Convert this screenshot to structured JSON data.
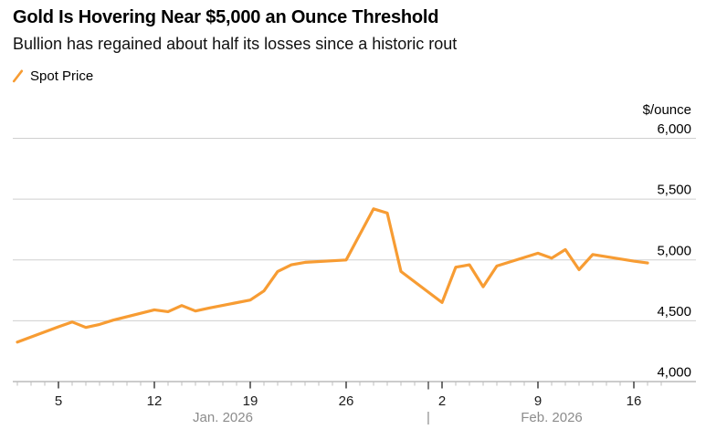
{
  "header": {
    "title": "Gold Is Hovering Near $5,000 an Ounce Threshold",
    "subtitle": "Bullion has regained about half its losses since a historic rout"
  },
  "legend": {
    "items": [
      {
        "label": "Spot Price",
        "marker": "slash-icon",
        "color": "#F79C33"
      }
    ]
  },
  "colors": {
    "accent_orange": "#F79C33",
    "gridline": "#CFCFCF",
    "axis_line": "#ADADAD",
    "major_tick": "#3F3F3F",
    "minor_tick": "#BDBDBD",
    "text_primary": "#000000",
    "text_day_labels": "#1C1C1C",
    "text_month_labels": "#8C8C8C"
  },
  "chart_data": {
    "type": "line",
    "title": "Gold Is Hovering Near $5,000 an Ounce Threshold",
    "subtitle": "Bullion has regained about half its losses since a historic rout",
    "grid": "horizontal",
    "legend_position": "top-left",
    "y_axis": {
      "unit_label": "$/ounce",
      "range": [
        4000,
        6000
      ],
      "ticks": [
        {
          "value": 6000,
          "label": "6,000"
        },
        {
          "value": 5500,
          "label": "5,500"
        },
        {
          "value": 5000,
          "label": "5,000"
        },
        {
          "value": 4500,
          "label": "4,500"
        },
        {
          "value": 4000,
          "label": "4,000"
        }
      ]
    },
    "x_axis": {
      "range": [
        "2026-01-02",
        "2026-02-18"
      ],
      "major_ticks": [
        {
          "label": "5",
          "date": "2026-01-05"
        },
        {
          "label": "12",
          "date": "2026-01-12"
        },
        {
          "label": "19",
          "date": "2026-01-19"
        },
        {
          "label": "26",
          "date": "2026-01-26"
        },
        {
          "label": "2",
          "date": "2026-02-02"
        },
        {
          "label": "9",
          "date": "2026-02-09"
        },
        {
          "label": "16",
          "date": "2026-02-16"
        }
      ],
      "month_labels": [
        {
          "label": "Jan. 2026",
          "center_date": "2026-01-17"
        },
        {
          "label": "Feb. 2026",
          "center_date": "2026-02-10"
        }
      ],
      "month_separator": {
        "glyph": "|",
        "date": "2026-02-01"
      }
    },
    "series": [
      {
        "name": "Spot Price",
        "color": "#F79C33",
        "points": [
          {
            "date": "2026-01-02",
            "value": 4325
          },
          {
            "date": "2026-01-05",
            "value": 4450
          },
          {
            "date": "2026-01-06",
            "value": 4490
          },
          {
            "date": "2026-01-07",
            "value": 4445
          },
          {
            "date": "2026-01-08",
            "value": 4470
          },
          {
            "date": "2026-01-09",
            "value": 4505
          },
          {
            "date": "2026-01-12",
            "value": 4590
          },
          {
            "date": "2026-01-13",
            "value": 4575
          },
          {
            "date": "2026-01-14",
            "value": 4625
          },
          {
            "date": "2026-01-15",
            "value": 4580
          },
          {
            "date": "2026-01-16",
            "value": 4605
          },
          {
            "date": "2026-01-19",
            "value": 4670
          },
          {
            "date": "2026-01-20",
            "value": 4745
          },
          {
            "date": "2026-01-21",
            "value": 4905
          },
          {
            "date": "2026-01-22",
            "value": 4960
          },
          {
            "date": "2026-01-23",
            "value": 4980
          },
          {
            "date": "2026-01-26",
            "value": 5000
          },
          {
            "date": "2026-01-27",
            "value": 5210
          },
          {
            "date": "2026-01-28",
            "value": 5420
          },
          {
            "date": "2026-01-29",
            "value": 5385
          },
          {
            "date": "2026-01-30",
            "value": 4905
          },
          {
            "date": "2026-02-02",
            "value": 4650
          },
          {
            "date": "2026-02-03",
            "value": 4940
          },
          {
            "date": "2026-02-04",
            "value": 4960
          },
          {
            "date": "2026-02-05",
            "value": 4780
          },
          {
            "date": "2026-02-06",
            "value": 4950
          },
          {
            "date": "2026-02-09",
            "value": 5055
          },
          {
            "date": "2026-02-10",
            "value": 5015
          },
          {
            "date": "2026-02-11",
            "value": 5085
          },
          {
            "date": "2026-02-12",
            "value": 4920
          },
          {
            "date": "2026-02-13",
            "value": 5045
          },
          {
            "date": "2026-02-16",
            "value": 4990
          },
          {
            "date": "2026-02-17",
            "value": 4975
          }
        ]
      }
    ]
  }
}
